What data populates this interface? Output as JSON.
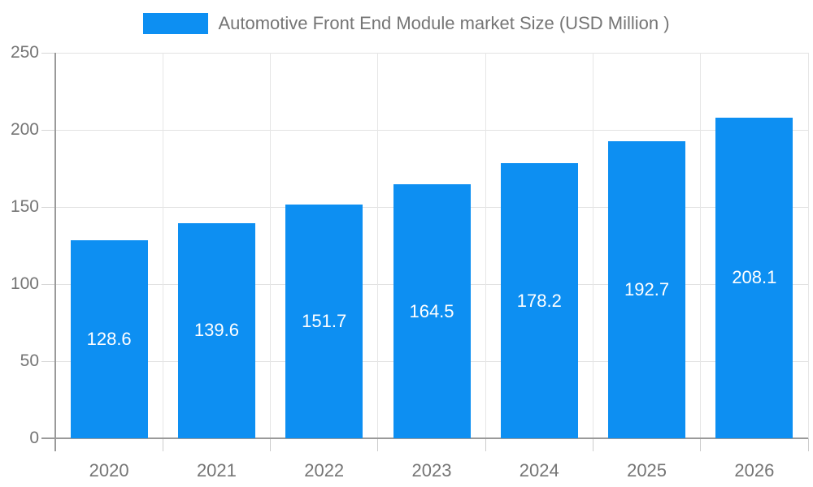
{
  "legend": {
    "label": "Automotive Front End Module market Size (USD Million )",
    "swatch_color": "#0d8ff2"
  },
  "chart_data": {
    "type": "bar",
    "title": "Automotive Front End Module market Size (USD Million )",
    "categories": [
      "2020",
      "2021",
      "2022",
      "2023",
      "2024",
      "2025",
      "2026"
    ],
    "values": [
      128.6,
      139.6,
      151.7,
      164.5,
      178.2,
      192.7,
      208.1
    ],
    "value_labels": [
      "128.6",
      "139.6",
      "151.7",
      "164.5",
      "178.2",
      "192.7",
      "208.1"
    ],
    "xlabel": "",
    "ylabel": "",
    "ylim": [
      0,
      250
    ],
    "yticks": [
      0,
      50,
      100,
      150,
      200,
      250
    ],
    "ytick_labels": [
      "0",
      "50",
      "100",
      "150",
      "200",
      "250"
    ],
    "grid": true,
    "legend_position": "top",
    "bar_color": "#0d8ff2",
    "value_label_color": "#ffffff",
    "axis_color": "#9a9a9a",
    "grid_color": "#e2e2e2",
    "tick_label_color": "#757575"
  }
}
